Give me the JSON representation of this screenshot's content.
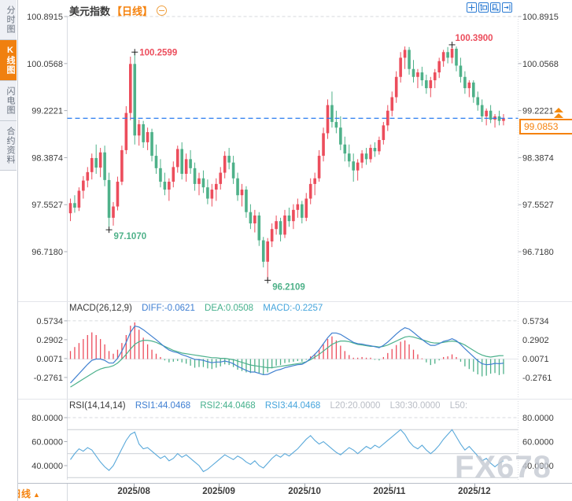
{
  "sidebar": {
    "items": [
      {
        "label": "分时图",
        "active": false
      },
      {
        "label": "K线图",
        "active": true
      },
      {
        "label": "闪电图",
        "active": false
      },
      {
        "label": "合约资料",
        "active": false
      }
    ]
  },
  "header": {
    "title": "美元指数",
    "period_tag": "【日线】",
    "collapse_icon": "circle-minus-icon",
    "toolbar_icons": [
      "move-tool",
      "fit-vertical",
      "fit-horizontal",
      "go-to-latest"
    ]
  },
  "macd_header": {
    "label": "MACD(26,12,9)",
    "diff": "DIFF:-0.0621",
    "dea": "DEA:0.0508",
    "macd": "MACD:-0.2257"
  },
  "rsi_header": {
    "label": "RSI(14,14,14)",
    "rsi1": "RSI1:44.0468",
    "rsi2": "RSI2:44.0468",
    "rsi3": "RSI3:44.0468",
    "l20": "L20:20.0000",
    "l30": "L30:30.0000",
    "l50": "L50:"
  },
  "price_tag": {
    "value": "99.0853"
  },
  "bottom_bar": {
    "period": "日线",
    "arrow": "▲"
  },
  "watermark": "FX678",
  "colors": {
    "up": "#ec4d5c",
    "down": "#4eb189",
    "accent_orange": "#f5820d",
    "current_price_line": "#2a7df0",
    "diff_line": "#4080d0",
    "dea_line": "#4cb18c",
    "rsi_line": "#5aa9da",
    "axis_text": "#3c3c3c",
    "grid": "#d7dade",
    "axis_line": "#d9dce2",
    "separator": "#e3e5ea",
    "guide": "#c9cdd4",
    "tick": "#a9aeb6",
    "marker_cross": "#222222"
  },
  "chart_data": {
    "type": "candlestick",
    "title": "美元指数",
    "period": "日线",
    "current_price": {
      "value": 99.0853,
      "label": "99.0853"
    },
    "y_axis": {
      "labels": [
        "100.8915",
        "100.0568",
        "99.2221",
        "98.3874",
        "97.5527",
        "96.7180"
      ]
    },
    "x_axis": {
      "labels": [
        "2025/08",
        "2025/09",
        "2025/10",
        "2025/11",
        "2025/12"
      ],
      "tick_candle_indices": [
        14.8,
        34.6,
        54.6,
        74.4,
        94.2
      ]
    },
    "markers": [
      {
        "text": "100.2599",
        "candle_index": 15,
        "price": 100.2599,
        "point": "high",
        "color": "up",
        "label_side": "right"
      },
      {
        "text": "100.3900",
        "candle_index": 89,
        "price": 100.39,
        "point": "high",
        "color": "up",
        "label_side": "above"
      },
      {
        "text": "97.1070",
        "candle_index": 9,
        "price": 97.107,
        "point": "low",
        "color": "down",
        "label_side": "below"
      },
      {
        "text": "96.2109",
        "candle_index": 46,
        "price": 96.2109,
        "point": "low",
        "color": "down",
        "label_side": "below"
      }
    ],
    "ohlc": [
      [
        97.4,
        97.66,
        97.26,
        97.58
      ],
      [
        97.58,
        97.72,
        97.41,
        97.5
      ],
      [
        97.5,
        97.86,
        97.44,
        97.8
      ],
      [
        97.8,
        98.06,
        97.66,
        97.98
      ],
      [
        97.98,
        98.22,
        97.86,
        98.13
      ],
      [
        98.13,
        98.46,
        98.0,
        98.38
      ],
      [
        98.38,
        98.62,
        98.1,
        98.21
      ],
      [
        98.21,
        98.56,
        98.04,
        98.48
      ],
      [
        98.48,
        98.6,
        97.88,
        97.99
      ],
      [
        97.99,
        98.12,
        97.107,
        97.32
      ],
      [
        97.32,
        97.6,
        97.18,
        97.52
      ],
      [
        97.52,
        98.05,
        97.45,
        97.96
      ],
      [
        97.96,
        98.6,
        97.9,
        98.52
      ],
      [
        98.52,
        99.3,
        98.45,
        99.18
      ],
      [
        99.18,
        100.18,
        99.05,
        100.05
      ],
      [
        100.05,
        100.2599,
        98.62,
        98.78
      ],
      [
        98.78,
        99.06,
        98.6,
        98.98
      ],
      [
        98.98,
        99.04,
        98.56,
        98.66
      ],
      [
        98.66,
        98.92,
        98.52,
        98.84
      ],
      [
        98.84,
        98.9,
        98.32,
        98.42
      ],
      [
        98.42,
        98.62,
        98.1,
        98.2
      ],
      [
        98.2,
        98.36,
        97.86,
        97.96
      ],
      [
        97.96,
        98.12,
        97.72,
        97.82
      ],
      [
        97.82,
        98.02,
        97.62,
        97.96
      ],
      [
        97.96,
        98.32,
        97.86,
        98.22
      ],
      [
        98.22,
        98.6,
        98.12,
        98.54
      ],
      [
        98.54,
        98.66,
        98.0,
        98.1
      ],
      [
        98.1,
        98.46,
        97.96,
        98.36
      ],
      [
        98.36,
        98.52,
        98.1,
        98.2
      ],
      [
        98.2,
        98.3,
        97.8,
        97.92
      ],
      [
        97.92,
        98.12,
        97.72,
        98.02
      ],
      [
        98.02,
        98.16,
        97.76,
        97.86
      ],
      [
        97.86,
        98.0,
        97.56,
        97.66
      ],
      [
        97.66,
        97.92,
        97.52,
        97.82
      ],
      [
        97.82,
        98.02,
        97.62,
        97.92
      ],
      [
        97.92,
        98.22,
        97.82,
        98.12
      ],
      [
        98.12,
        98.5,
        98.02,
        98.42
      ],
      [
        98.42,
        98.56,
        98.18,
        98.3
      ],
      [
        98.3,
        98.42,
        97.92,
        98.02
      ],
      [
        98.02,
        98.12,
        97.62,
        97.72
      ],
      [
        97.72,
        97.92,
        97.52,
        97.82
      ],
      [
        97.82,
        97.88,
        97.32,
        97.42
      ],
      [
        97.42,
        97.56,
        97.12,
        97.22
      ],
      [
        97.22,
        97.46,
        97.06,
        97.36
      ],
      [
        97.36,
        97.42,
        96.82,
        96.92
      ],
      [
        96.92,
        96.98,
        96.44,
        96.54
      ],
      [
        96.54,
        96.96,
        96.2109,
        96.9
      ],
      [
        96.9,
        97.22,
        96.8,
        97.12
      ],
      [
        97.12,
        97.36,
        97.02,
        97.26
      ],
      [
        97.26,
        97.32,
        96.9,
        97.02
      ],
      [
        97.02,
        97.46,
        96.96,
        97.36
      ],
      [
        97.36,
        97.5,
        97.16,
        97.26
      ],
      [
        97.26,
        97.56,
        97.12,
        97.46
      ],
      [
        97.46,
        97.66,
        97.32,
        97.56
      ],
      [
        97.56,
        97.62,
        97.22,
        97.32
      ],
      [
        97.32,
        97.76,
        97.26,
        97.66
      ],
      [
        97.66,
        98.02,
        97.56,
        97.92
      ],
      [
        97.92,
        98.12,
        97.72,
        98.02
      ],
      [
        98.02,
        98.52,
        97.96,
        98.42
      ],
      [
        98.42,
        98.92,
        98.32,
        98.82
      ],
      [
        98.82,
        99.42,
        98.72,
        99.32
      ],
      [
        99.32,
        99.56,
        98.92,
        99.02
      ],
      [
        99.02,
        99.22,
        98.82,
        98.92
      ],
      [
        98.92,
        99.12,
        98.52,
        98.62
      ],
      [
        98.62,
        98.76,
        98.32,
        98.46
      ],
      [
        98.46,
        98.62,
        98.22,
        98.32
      ],
      [
        98.32,
        98.46,
        97.96,
        98.16
      ],
      [
        98.16,
        98.36,
        97.98,
        98.3
      ],
      [
        98.3,
        98.52,
        98.2,
        98.46
      ],
      [
        98.46,
        98.56,
        98.26,
        98.36
      ],
      [
        98.36,
        98.62,
        98.3,
        98.56
      ],
      [
        98.56,
        98.66,
        98.4,
        98.5
      ],
      [
        98.5,
        98.76,
        98.44,
        98.7
      ],
      [
        98.7,
        99.02,
        98.62,
        98.96
      ],
      [
        98.96,
        99.32,
        98.86,
        99.22
      ],
      [
        99.22,
        99.56,
        99.12,
        99.46
      ],
      [
        99.46,
        99.92,
        99.36,
        99.82
      ],
      [
        99.82,
        100.26,
        99.72,
        100.16
      ],
      [
        100.16,
        100.36,
        99.96,
        100.3
      ],
      [
        100.3,
        100.35,
        99.86,
        99.96
      ],
      [
        99.96,
        100.12,
        99.72,
        99.82
      ],
      [
        99.82,
        99.96,
        99.62,
        99.9
      ],
      [
        99.9,
        100.0,
        99.66,
        99.76
      ],
      [
        99.76,
        99.86,
        99.52,
        99.62
      ],
      [
        99.62,
        99.82,
        99.46,
        99.76
      ],
      [
        99.76,
        99.96,
        99.62,
        99.9
      ],
      [
        99.9,
        100.16,
        99.8,
        100.1
      ],
      [
        100.1,
        100.3,
        100.0,
        100.26
      ],
      [
        100.26,
        100.35,
        100.06,
        100.16
      ],
      [
        100.16,
        100.39,
        100.06,
        100.32
      ],
      [
        100.32,
        100.36,
        99.92,
        100.02
      ],
      [
        100.02,
        100.16,
        99.72,
        99.82
      ],
      [
        99.82,
        99.92,
        99.52,
        99.62
      ],
      [
        99.62,
        99.76,
        99.46,
        99.72
      ],
      [
        99.72,
        99.76,
        99.36,
        99.46
      ],
      [
        99.46,
        99.56,
        99.22,
        99.32
      ],
      [
        99.32,
        99.42,
        99.02,
        99.12
      ],
      [
        99.12,
        99.26,
        98.96,
        99.22
      ],
      [
        99.22,
        99.32,
        99.0,
        99.06
      ],
      [
        99.06,
        99.16,
        98.92,
        99.12
      ],
      [
        99.12,
        99.22,
        98.96,
        99.04
      ],
      [
        99.04,
        99.16,
        98.96,
        99.0853
      ]
    ],
    "indicators": {
      "macd": {
        "params": "26,12,9",
        "diff_value": -0.0621,
        "dea_value": 0.0508,
        "macd_value": -0.2257,
        "axis_labels": [
          "0.5734",
          "0.2902",
          "0.0071",
          "-0.2761"
        ],
        "hist": [
          0.12,
          0.18,
          0.24,
          0.3,
          0.36,
          0.4,
          0.36,
          0.3,
          0.22,
          0.12,
          0.08,
          0.14,
          0.24,
          0.36,
          0.5,
          0.55,
          0.44,
          0.32,
          0.22,
          0.14,
          0.08,
          0.03,
          -0.02,
          -0.05,
          -0.04,
          -0.03,
          -0.05,
          -0.07,
          -0.1,
          -0.13,
          -0.12,
          -0.12,
          -0.14,
          -0.15,
          -0.13,
          -0.11,
          -0.08,
          -0.09,
          -0.12,
          -0.16,
          -0.18,
          -0.2,
          -0.21,
          -0.19,
          -0.21,
          -0.23,
          -0.2,
          -0.14,
          -0.1,
          -0.09,
          -0.06,
          -0.05,
          -0.04,
          -0.03,
          -0.04,
          -0.01,
          0.04,
          0.08,
          0.14,
          0.22,
          0.3,
          0.34,
          0.28,
          0.2,
          0.12,
          0.06,
          0.02,
          0.02,
          0.03,
          0.02,
          0.02,
          -0.01,
          -0.02,
          0.03,
          0.09,
          0.15,
          0.21,
          0.26,
          0.28,
          0.22,
          0.14,
          0.07,
          0.01,
          -0.05,
          -0.09,
          -0.07,
          -0.02,
          0.03,
          0.04,
          0.07,
          0.03,
          -0.04,
          -0.11,
          -0.15,
          -0.19,
          -0.23,
          -0.26,
          -0.25,
          -0.22,
          -0.21,
          -0.24,
          -0.2257
        ],
        "dea_line": [
          -0.42,
          -0.38,
          -0.34,
          -0.3,
          -0.26,
          -0.22,
          -0.18,
          -0.15,
          -0.13,
          -0.12,
          -0.1,
          -0.06,
          0.0,
          0.07,
          0.15,
          0.22,
          0.26,
          0.28,
          0.28,
          0.27,
          0.25,
          0.22,
          0.19,
          0.16,
          0.13,
          0.11,
          0.09,
          0.08,
          0.07,
          0.06,
          0.05,
          0.04,
          0.03,
          0.02,
          0.02,
          0.01,
          0.01,
          0.0,
          -0.01,
          -0.03,
          -0.05,
          -0.07,
          -0.09,
          -0.1,
          -0.11,
          -0.12,
          -0.13,
          -0.13,
          -0.12,
          -0.11,
          -0.1,
          -0.09,
          -0.08,
          -0.07,
          -0.06,
          -0.04,
          -0.01,
          0.03,
          0.07,
          0.12,
          0.17,
          0.22,
          0.25,
          0.27,
          0.27,
          0.26,
          0.24,
          0.22,
          0.21,
          0.2,
          0.19,
          0.19,
          0.18,
          0.19,
          0.21,
          0.24,
          0.27,
          0.3,
          0.33,
          0.34,
          0.33,
          0.31,
          0.29,
          0.27,
          0.25,
          0.24,
          0.24,
          0.25,
          0.26,
          0.27,
          0.26,
          0.24,
          0.21,
          0.17,
          0.13,
          0.09,
          0.06,
          0.04,
          0.03,
          0.04,
          0.05,
          0.0508
        ]
      },
      "rsi": {
        "params": "14,14,14",
        "rsi1_value": 44.0468,
        "rsi2_value": 44.0468,
        "rsi3_value": 44.0468,
        "axis_labels": [
          "80.0000",
          "60.0000",
          "40.0000"
        ],
        "guide_levels": [
          80,
          70,
          50,
          30
        ],
        "values": [
          45,
          50,
          54,
          52,
          55,
          53,
          48,
          43,
          39,
          36,
          40,
          47,
          54,
          61,
          66,
          68,
          58,
          54,
          55,
          52,
          49,
          46,
          48,
          44,
          46,
          50,
          47,
          49,
          46,
          43,
          40,
          35,
          37,
          40,
          43,
          46,
          49,
          47,
          45,
          48,
          46,
          43,
          41,
          44,
          40,
          38,
          42,
          46,
          49,
          47,
          50,
          48,
          51,
          54,
          58,
          62,
          65,
          61,
          58,
          60,
          57,
          54,
          51,
          49,
          52,
          55,
          53,
          50,
          53,
          56,
          54,
          57,
          55,
          58,
          61,
          64,
          67,
          70,
          66,
          60,
          56,
          54,
          57,
          53,
          50,
          53,
          57,
          62,
          66,
          70,
          64,
          58,
          53,
          56,
          52,
          48,
          44,
          46,
          42,
          39,
          42,
          44.05
        ]
      }
    }
  }
}
